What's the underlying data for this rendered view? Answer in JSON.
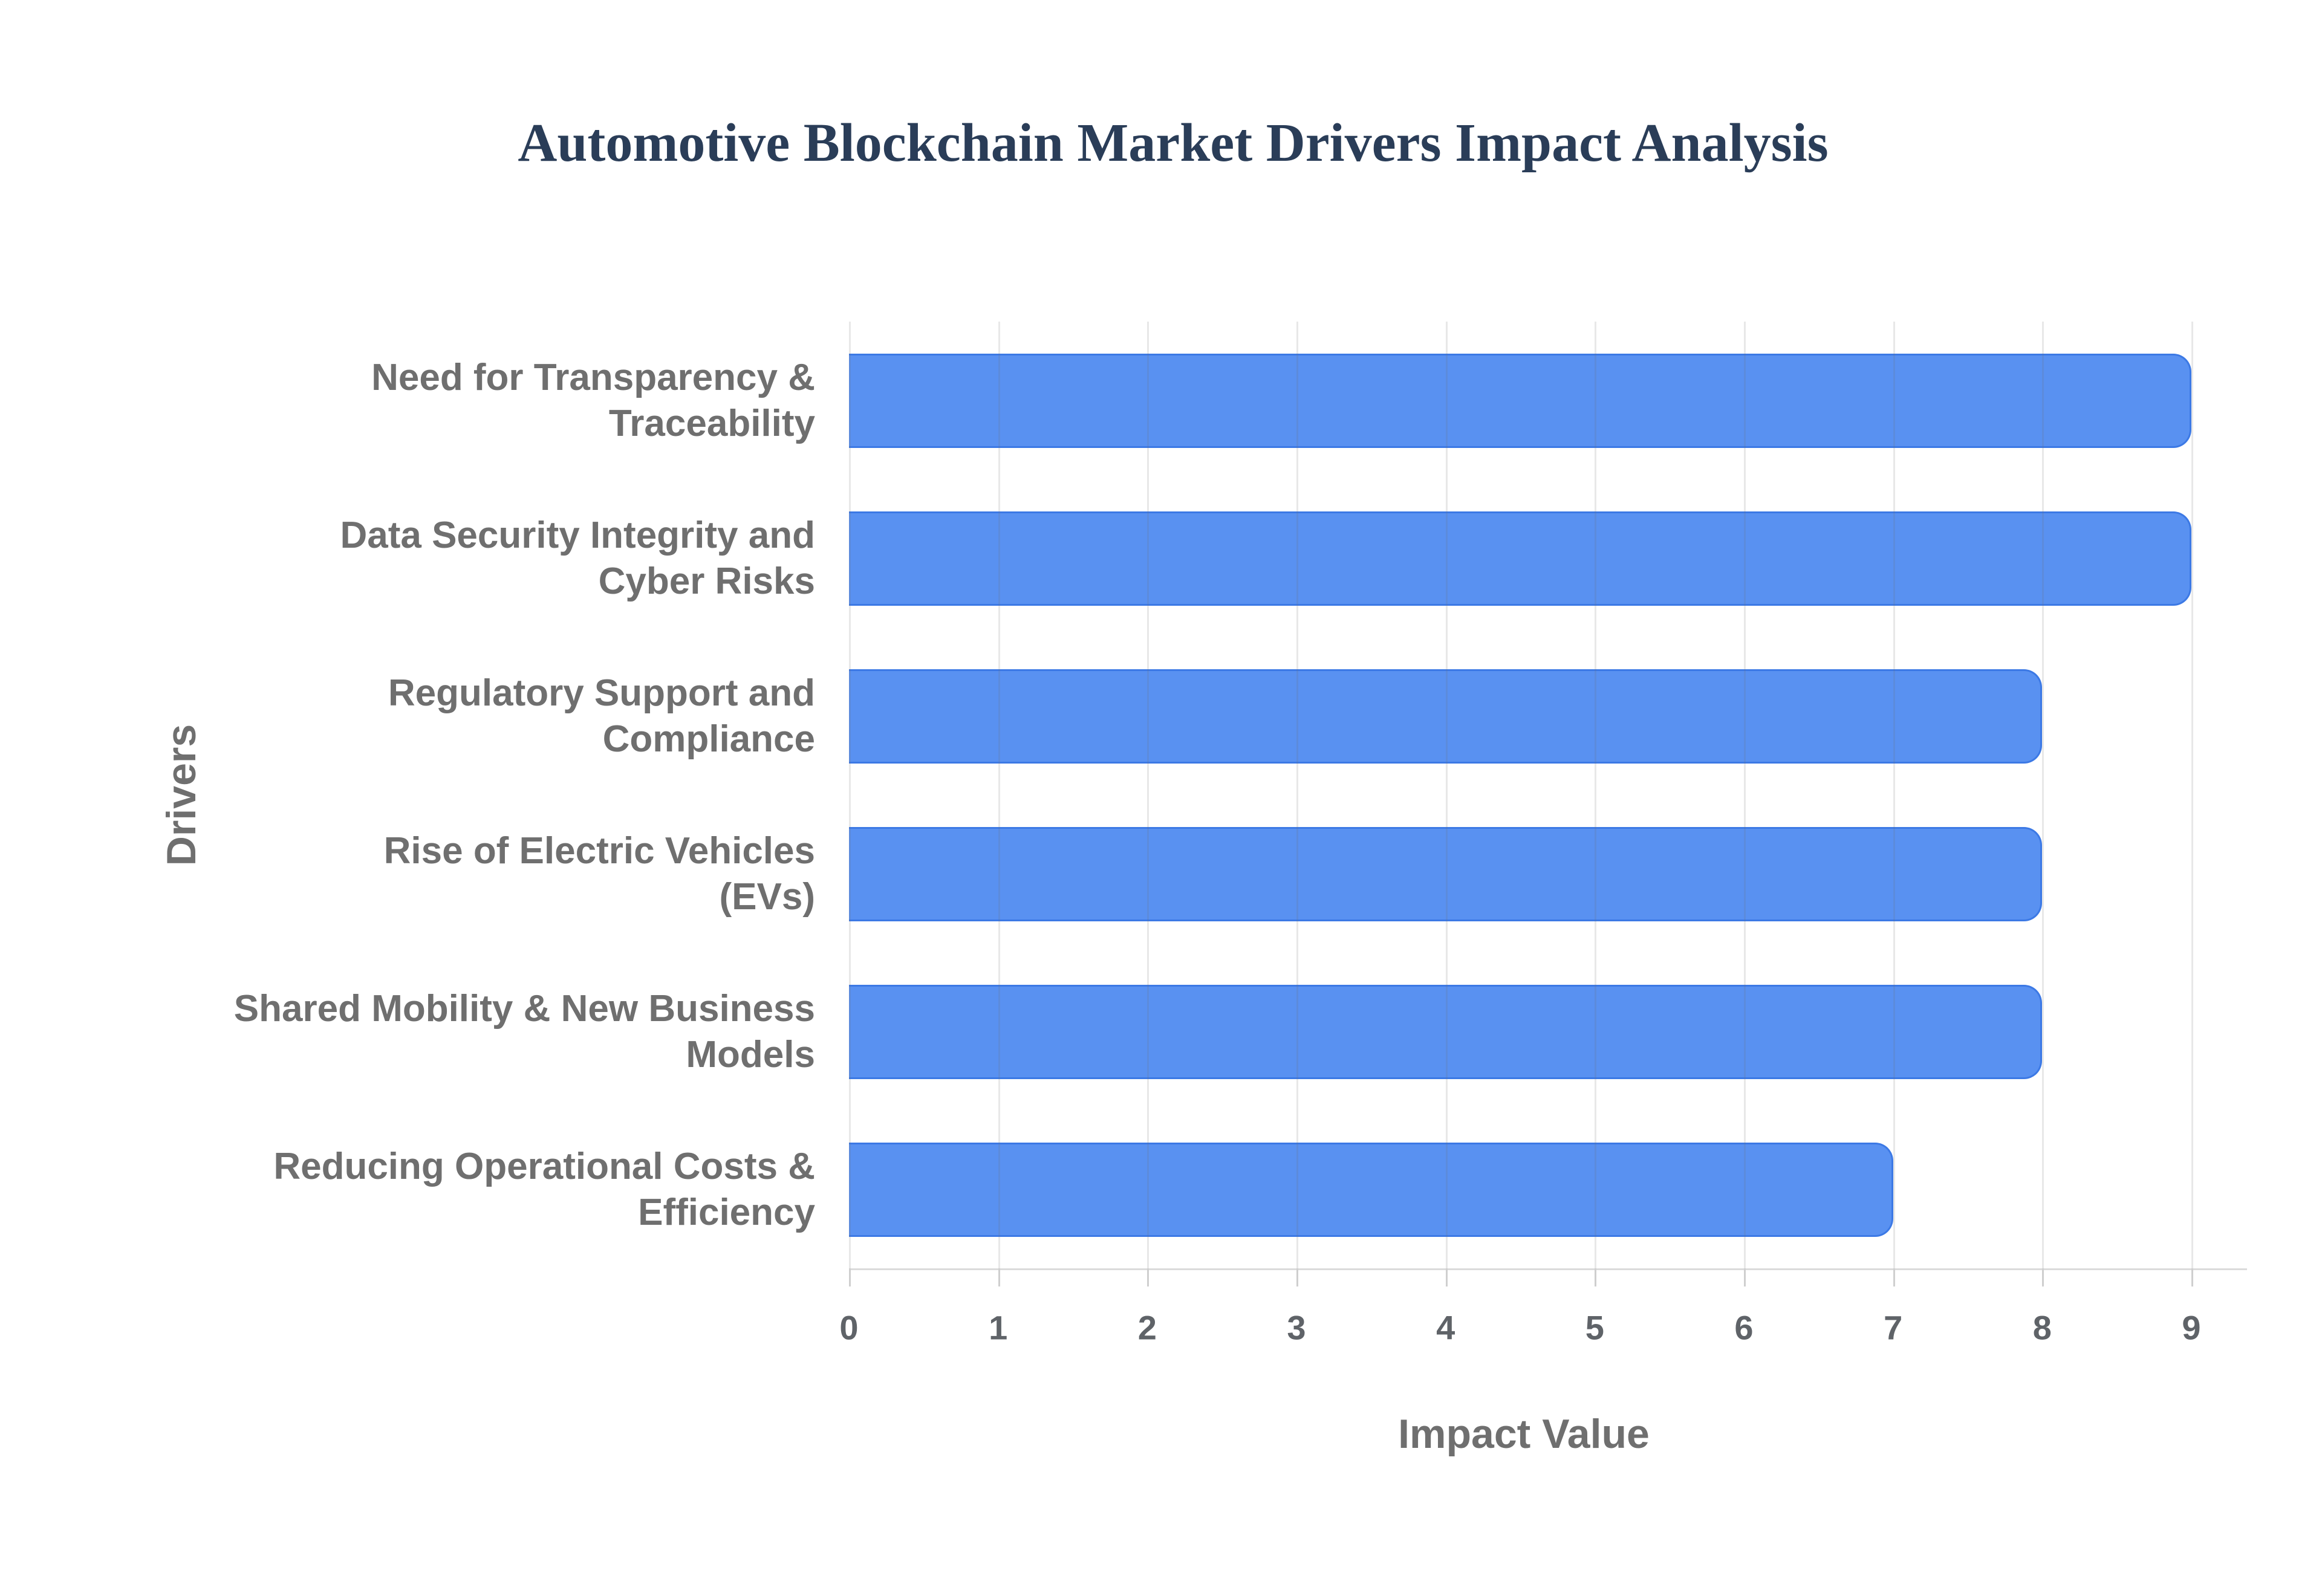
{
  "page": {
    "background": "#ffffff"
  },
  "chart_data": {
    "type": "bar",
    "orientation": "horizontal",
    "title": "Automotive Blockchain Market Drivers Impact Analysis",
    "categories": [
      "Need for Transparency & Traceability",
      "Data Security Integrity and Cyber Risks",
      "Regulatory Support and Compliance",
      "Rise of Electric Vehicles (EVs)",
      "Shared Mobility & New Business Models",
      "Reducing Operational Costs & Efficiency"
    ],
    "category_lines": [
      [
        "Need for Transparency &",
        "Traceability"
      ],
      [
        "Data Security Integrity and",
        "Cyber Risks"
      ],
      [
        "Regulatory Support and",
        "Compliance"
      ],
      [
        "Rise of Electric Vehicles",
        "(EVs)"
      ],
      [
        "Shared Mobility & New Business",
        "Models"
      ],
      [
        "Reducing Operational Costs &",
        "Efficiency"
      ]
    ],
    "values": [
      9,
      9,
      8,
      8,
      8,
      7
    ],
    "xlabel": "Impact Value",
    "ylabel": "Drivers",
    "xlim": [
      0,
      9
    ],
    "xticks": [
      "0",
      "1",
      "2",
      "3",
      "4",
      "5",
      "6",
      "7",
      "8",
      "9"
    ],
    "grid": "vertical-gridlines-on",
    "legend": "none",
    "colors": {
      "bar_fill": "#5991F1",
      "bar_border": "#3C79E5",
      "title_text": "#2A3D58",
      "axis_title_text": "#6F6F6F",
      "category_text": "#6F6F6F",
      "tick_text": "#5F6368",
      "gridline": "#DEDEDE",
      "axis_line": "#DBDBDB",
      "tick_mark": "#CFCFCF"
    }
  }
}
